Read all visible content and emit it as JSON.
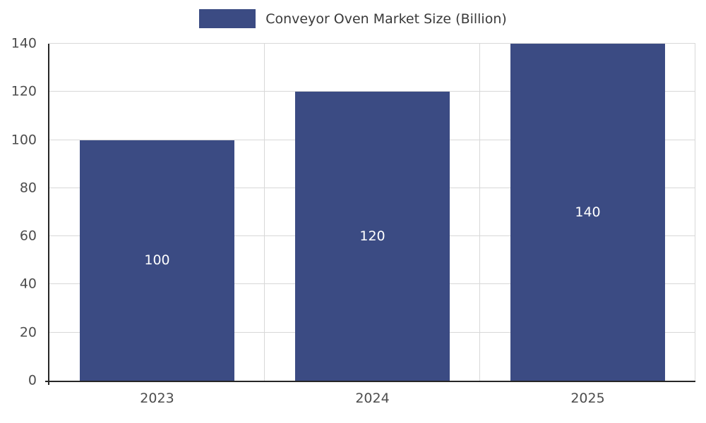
{
  "chart_data": {
    "type": "bar",
    "title": "Conveyor Oven Market Size (Billion)",
    "categories": [
      "2023",
      "2024",
      "2025"
    ],
    "values": [
      100,
      120,
      140
    ],
    "xlabel": "",
    "ylabel": "",
    "ylim": [
      0,
      140
    ],
    "yticks": [
      0,
      20,
      40,
      60,
      80,
      100,
      120,
      140
    ],
    "grid": true,
    "legend": {
      "label": "Conveyor Oven Market Size (Billion)",
      "position": "top-center"
    },
    "colors": {
      "bar": "#3B4B83",
      "value_label": "#ffffff",
      "grid": "#d8d8d8",
      "axis": "#262626",
      "tick_label": "#4d4d4d",
      "legend_text": "#3a3a3a",
      "background": "#ffffff"
    }
  }
}
